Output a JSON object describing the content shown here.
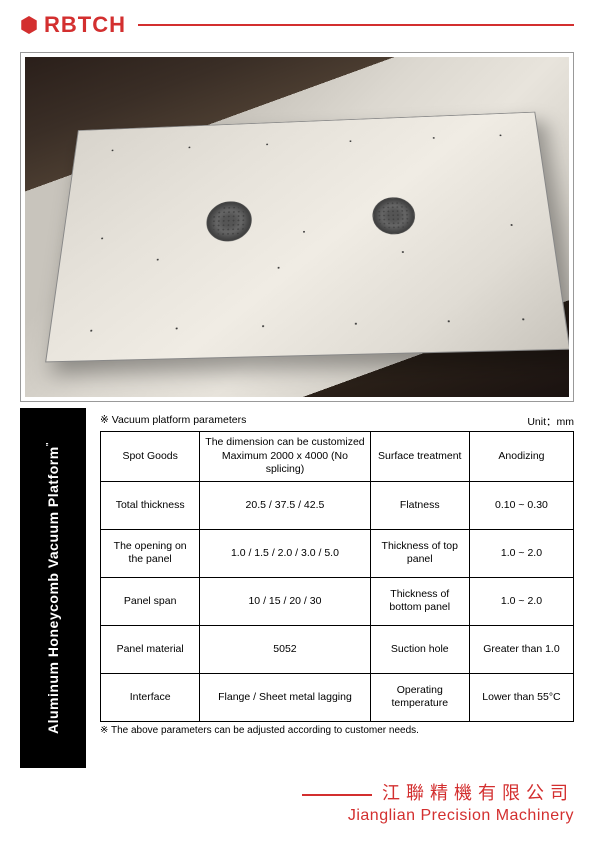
{
  "brand": {
    "name": "RBTCH",
    "color": "#d32f2f"
  },
  "sidebar": {
    "title": "Aluminum Honeycomb Vacuum Platform",
    "sub": "\""
  },
  "table": {
    "heading": "※ Vacuum platform parameters",
    "unit_label": "Unit：mm",
    "footnote": "※ The above parameters can be adjusted according to customer needs.",
    "rows": [
      {
        "a": "Spot Goods",
        "b": "The dimension can be customized Maximum 2000 x 4000 (No splicing)",
        "c": "Surface treatment",
        "d": "Anodizing"
      },
      {
        "a": "Total thickness",
        "b": "20.5 / 37.5 / 42.5",
        "c": "Flatness",
        "d": "0.10 ~ 0.30"
      },
      {
        "a": "The opening on the panel",
        "b": "1.0 / 1.5 / 2.0 / 3.0 / 5.0",
        "c": "Thickness of top panel",
        "d": "1.0 ~ 2.0"
      },
      {
        "a": "Panel span",
        "b": "10 / 15 / 20 / 30",
        "c": "Thickness of bottom panel",
        "d": "1.0 ~ 2.0"
      },
      {
        "a": "Panel material",
        "b": "5052",
        "c": "Suction hole",
        "d": "Greater than 1.0"
      },
      {
        "a": "Interface",
        "b": "Flange / Sheet metal lagging",
        "c": "Operating temperature",
        "d": "Lower than 55°C"
      }
    ]
  },
  "footer": {
    "cn": "江聯精機有限公司",
    "en": "Jianglian Precision Machinery"
  },
  "colors": {
    "accent": "#d32f2f",
    "border": "#000000",
    "background": "#ffffff"
  }
}
